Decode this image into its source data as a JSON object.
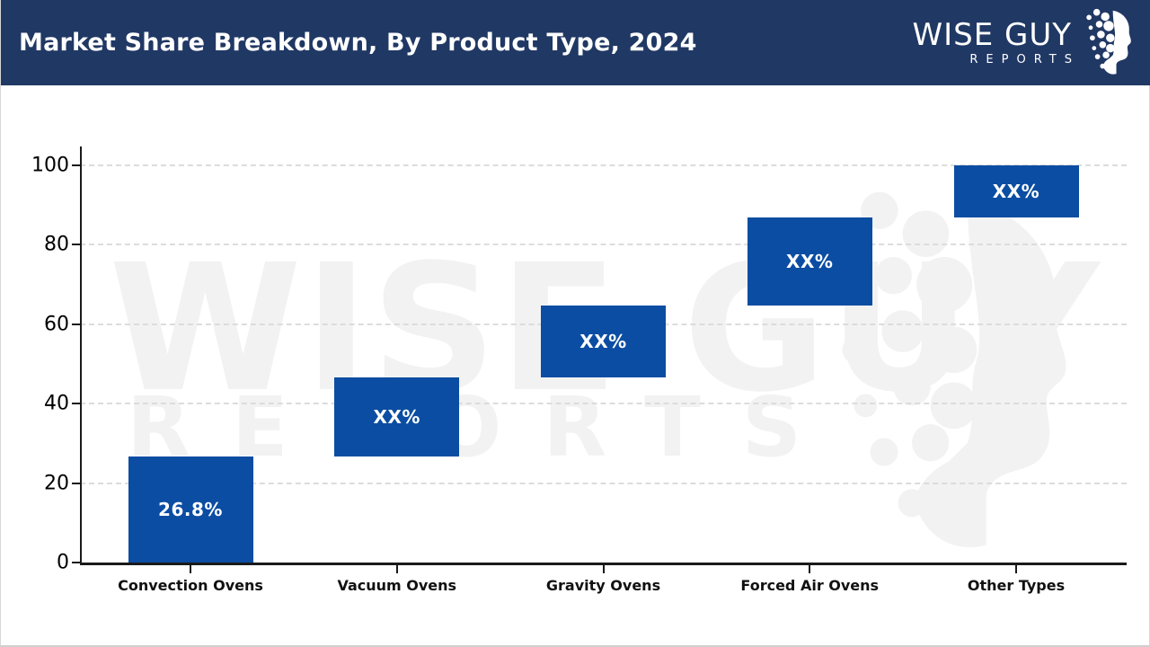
{
  "header": {
    "title": "Market Share Breakdown, By Product Type, 2024",
    "logo": {
      "line1": "WISE GUY",
      "line2": "REPORTS",
      "mark": "dotted-face-profile"
    }
  },
  "watermark": {
    "line1": "WISE GUY",
    "line2": "REPORTS",
    "mark": "dotted-face-profile"
  },
  "colors": {
    "header_bg": "#203864",
    "bar": "#0B4DA2",
    "bar_label": "#ffffff",
    "axis": "#1a1a1a",
    "gridline": "#dcdcdc",
    "watermark": "#f2f2f2",
    "title_text": "#ffffff"
  },
  "chart_data": {
    "type": "bar",
    "subtype": "waterfall",
    "title": "Market Share Breakdown, By Product Type, 2024",
    "categories": [
      "Convection Ovens",
      "Vacuum Ovens",
      "Gravity Ovens",
      "Forced Air Ovens",
      "Other Types"
    ],
    "bars": [
      {
        "category": "Convection Ovens",
        "start": 0,
        "end": 26.8,
        "label": "26.8%"
      },
      {
        "category": "Vacuum Ovens",
        "start": 26.8,
        "end": 46.6,
        "label": "XX%"
      },
      {
        "category": "Gravity Ovens",
        "start": 46.6,
        "end": 64.6,
        "label": "XX%"
      },
      {
        "category": "Forced Air Ovens",
        "start": 64.6,
        "end": 86.8,
        "label": "XX%"
      },
      {
        "category": "Other Types",
        "start": 86.8,
        "end": 100,
        "label": "XX%"
      }
    ],
    "xlabel": "",
    "ylabel": "",
    "yticks": [
      0,
      20,
      40,
      60,
      80,
      100
    ],
    "ylim": [
      0,
      105
    ],
    "grid": "horizontal-dashed",
    "legend": "none",
    "note": "values above first bar are masked as XX% in source image"
  }
}
